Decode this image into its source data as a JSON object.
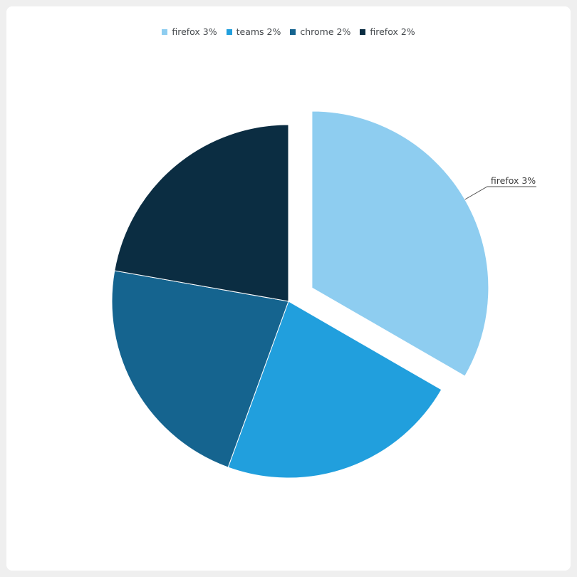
{
  "page": {
    "background_color": "#efefef",
    "card_color": "#ffffff"
  },
  "chart_data": {
    "type": "pie",
    "title": "",
    "total": 9,
    "direction": "clockwise",
    "start_angle_deg": 0,
    "legend_position": "top",
    "slices": [
      {
        "label": "firefox",
        "value": 3,
        "percent": 33.33,
        "legend_label": "firefox 3%",
        "callout_label": "firefox 3%",
        "color": "#8ecdf0",
        "exploded": true
      },
      {
        "label": "teams",
        "value": 2,
        "percent": 22.22,
        "legend_label": "teams 2%",
        "color": "#219fdd",
        "exploded": false
      },
      {
        "label": "chrome",
        "value": 2,
        "percent": 22.22,
        "legend_label": "chrome 2%",
        "color": "#15648f",
        "exploded": false
      },
      {
        "label": "firefox",
        "value": 2,
        "percent": 22.22,
        "legend_label": "firefox 2%",
        "color": "#0b2d42",
        "exploded": false
      }
    ]
  }
}
